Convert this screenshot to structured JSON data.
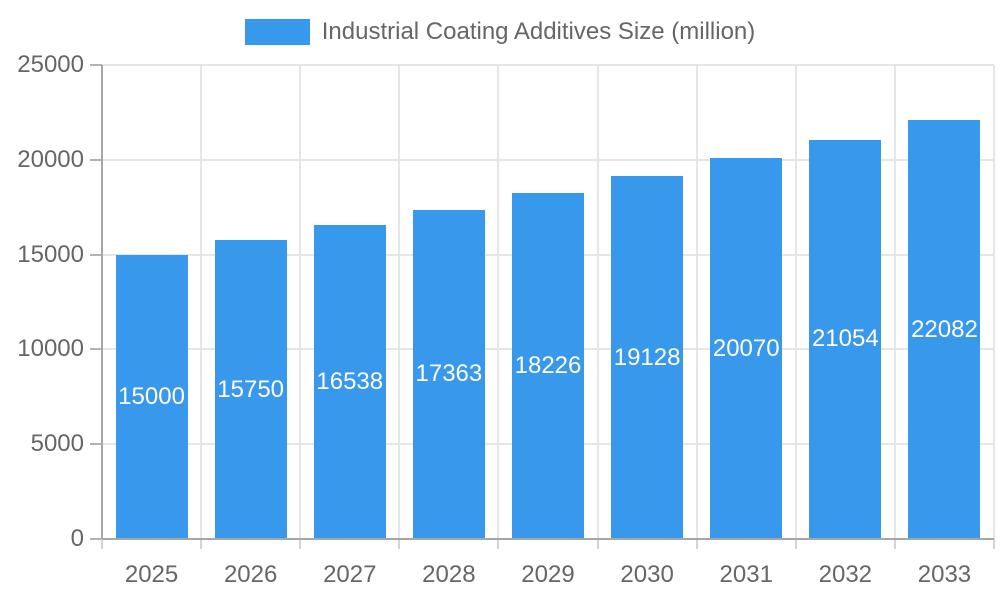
{
  "legend": {
    "label": "Industrial Coating Additives Size (million)"
  },
  "chart_data": {
    "type": "bar",
    "title": "Industrial Coating Additives Size (million)",
    "categories": [
      "2025",
      "2026",
      "2027",
      "2028",
      "2029",
      "2030",
      "2031",
      "2032",
      "2033"
    ],
    "values": [
      15000,
      15750,
      16538,
      17363,
      18226,
      19128,
      20070,
      21054,
      22082
    ],
    "xlabel": "",
    "ylabel": "",
    "ylim": [
      0,
      25000
    ],
    "yticks": [
      0,
      5000,
      10000,
      15000,
      20000,
      25000
    ],
    "grid": true,
    "legend_position": "top",
    "colors": {
      "bar": "#3898EC",
      "value_label": "#ffffff",
      "tick_label": "#666666",
      "gridline": "#e6e6e6",
      "axis_line": "#a6a6a6",
      "tick_mark_y": "#b3b3b3",
      "tick_mark_x": "#d4d4d4"
    }
  }
}
